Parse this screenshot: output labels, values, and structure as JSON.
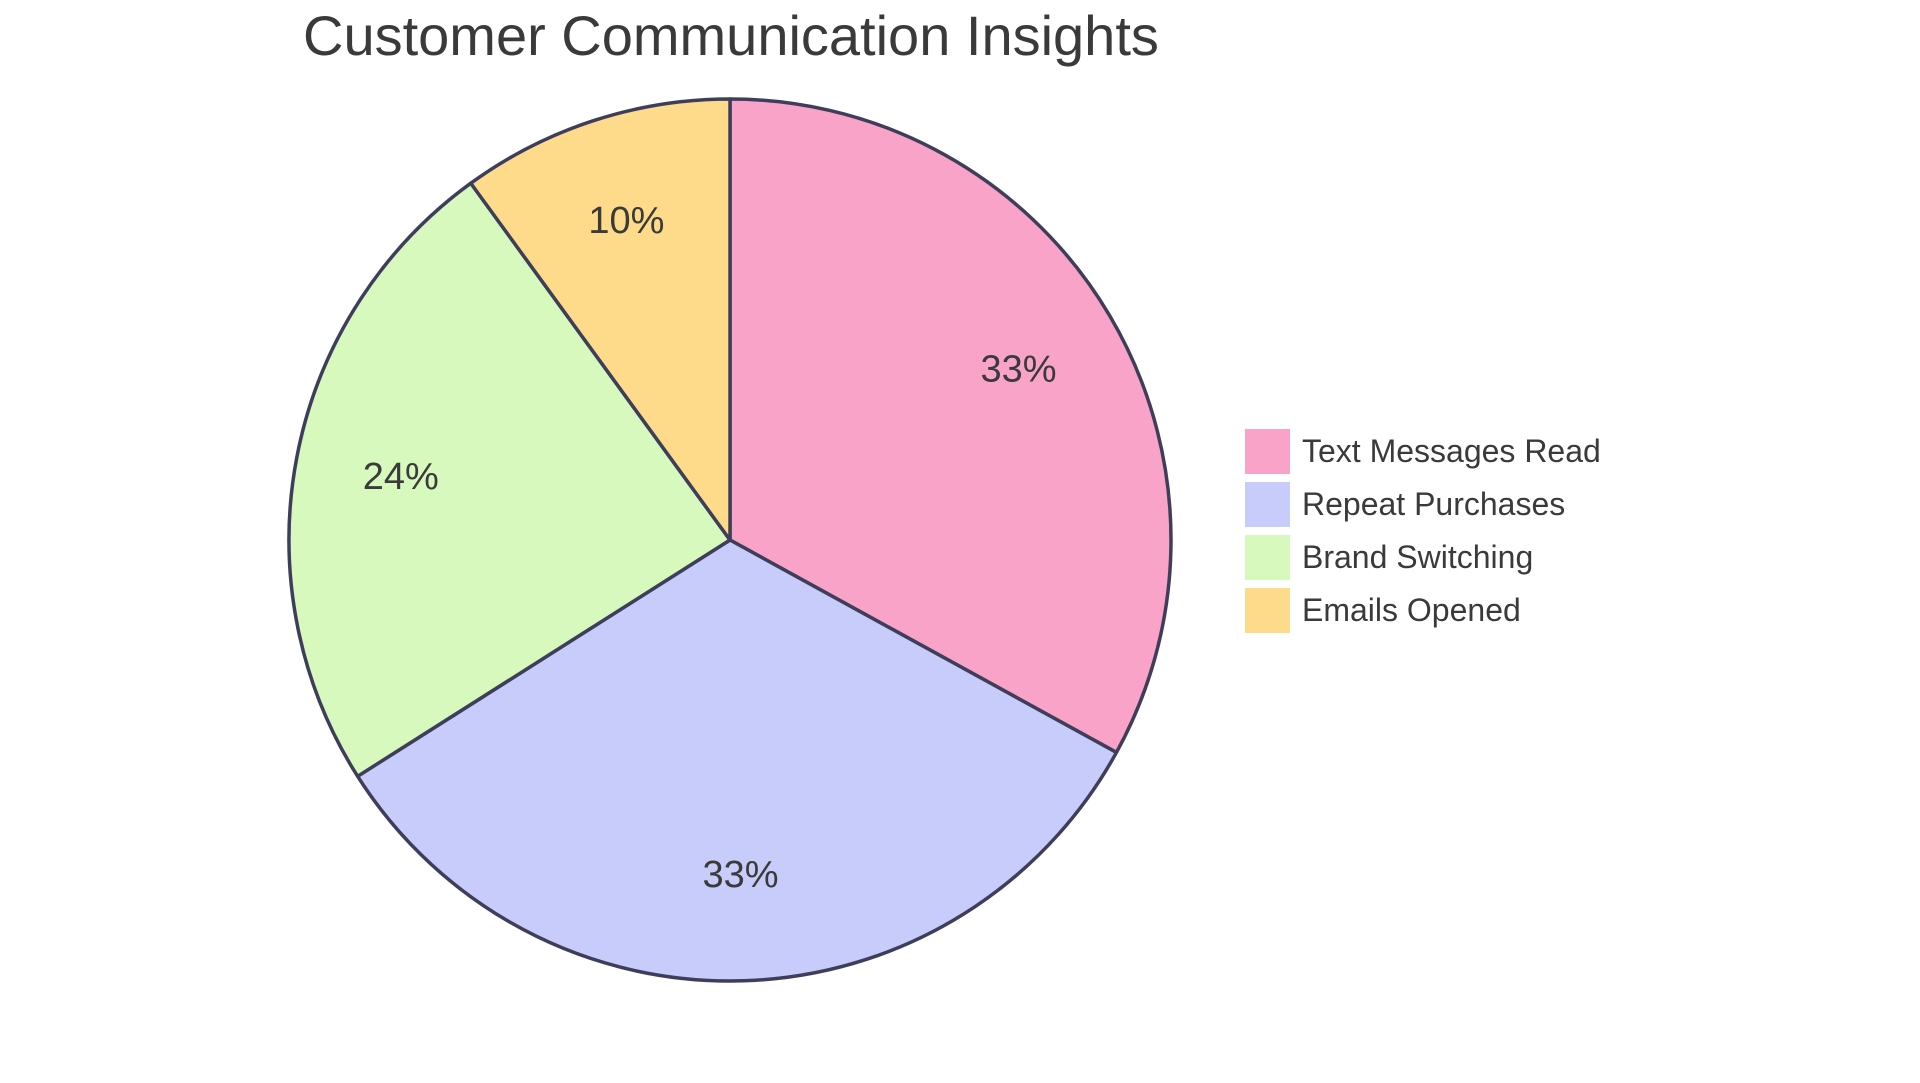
{
  "chart_data": {
    "type": "pie",
    "title": "Customer Communication Insights",
    "labels": [
      "Text Messages Read",
      "Repeat Purchases",
      "Brand Switching",
      "Emails Opened"
    ],
    "values": [
      33,
      33,
      24,
      10
    ],
    "percent_labels": [
      "33%",
      "33%",
      "24%",
      "10%"
    ],
    "colors": [
      "#F9A3C8",
      "#C8CCFA",
      "#D8F9BD",
      "#FDDB8A"
    ],
    "edge_color": "#3E3E5B",
    "text_color": "#3A3A3A",
    "start_angle": "12 o'clock",
    "direction": "clockwise",
    "label_distance_fraction": 0.76,
    "legend_position": "right"
  }
}
